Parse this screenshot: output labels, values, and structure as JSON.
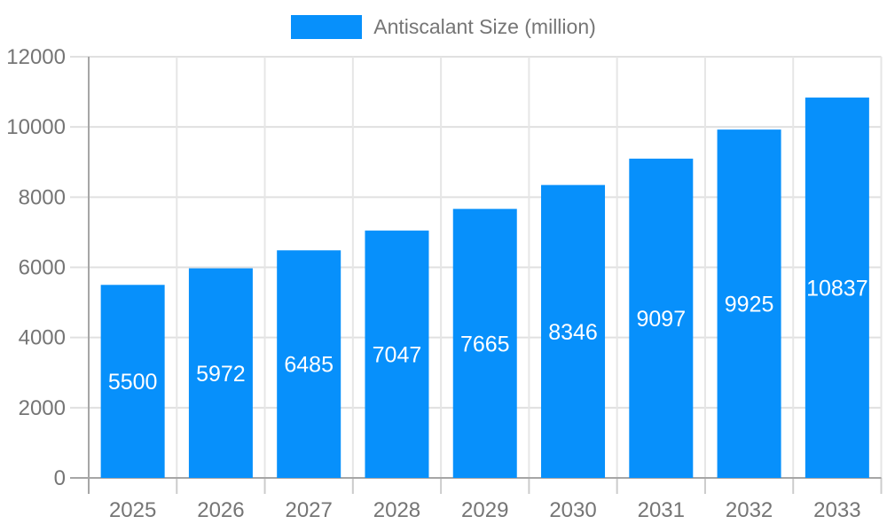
{
  "chart_data": {
    "type": "bar",
    "title": "",
    "legend_label": "Antiscalant Size (million)",
    "legend_position": "top",
    "categories": [
      "2025",
      "2026",
      "2027",
      "2028",
      "2029",
      "2030",
      "2031",
      "2032",
      "2033"
    ],
    "series": [
      {
        "name": "Antiscalant Size (million)",
        "values": [
          5500,
          5972,
          6485,
          7047,
          7665,
          8346,
          9097,
          9925,
          10837
        ]
      }
    ],
    "bar_value_labels": [
      "5500",
      "5972",
      "6485",
      "7047",
      "7665",
      "8346",
      "9097",
      "9925",
      "10837"
    ],
    "xlabel": "",
    "ylabel": "",
    "ylim": [
      0,
      12000
    ],
    "y_tick_step": 2000,
    "y_tick_labels": [
      "0",
      "2000",
      "4000",
      "6000",
      "8000",
      "10000",
      "12000"
    ],
    "grid": true
  },
  "colors": {
    "bar": "#0790FB",
    "bar_value_text": "#FFFFFF",
    "axis_line": "#A6A6A6",
    "grid_line_horizontal": "#E0E0E0",
    "grid_line_vertical": "#E6E6E6",
    "tick_mark": "#CCCCCC",
    "tick_text": "#757575",
    "legend_text": "#757575",
    "background": "#FFFFFF"
  }
}
